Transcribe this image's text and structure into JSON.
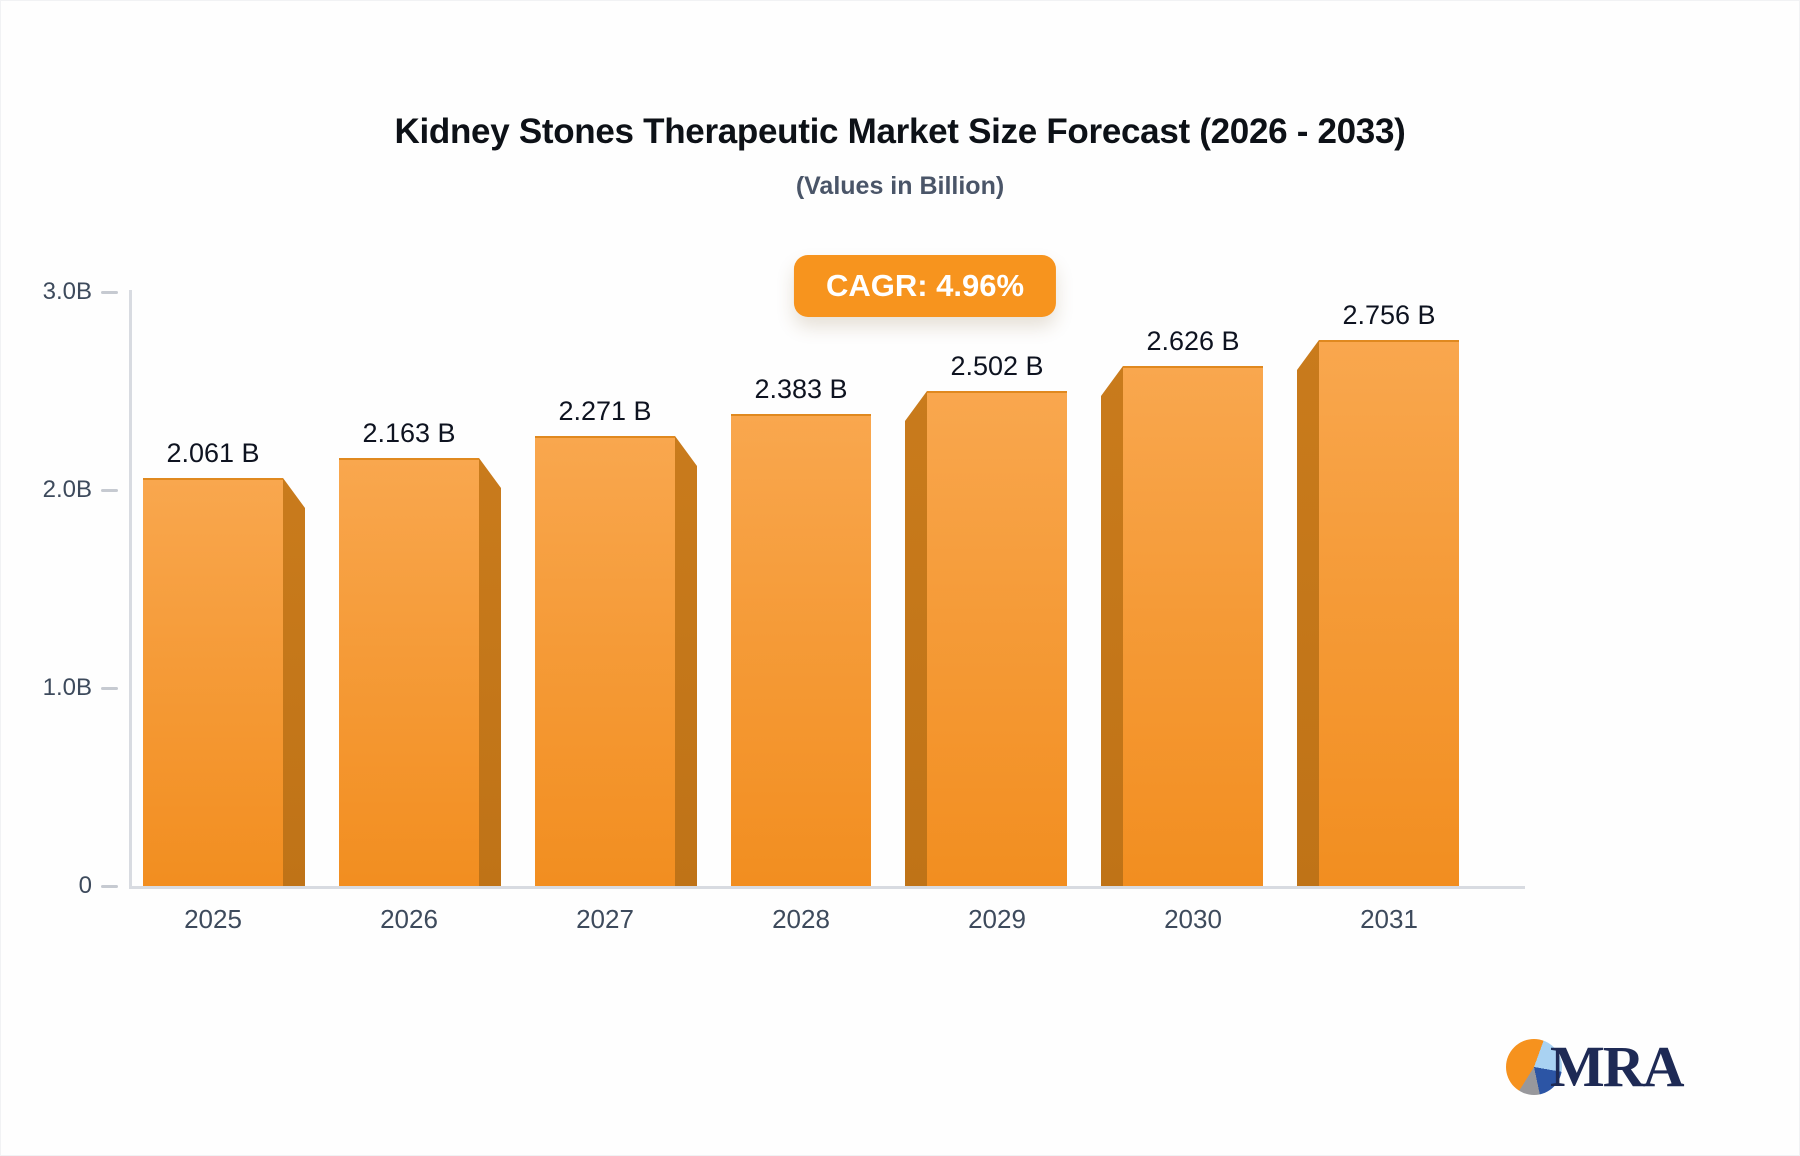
{
  "title": "Kidney Stones Therapeutic Market Size Forecast (2026 - 2033)",
  "subtitle": "(Values in Billion)",
  "badge": {
    "label": "CAGR: 4.96%",
    "color": "#f7941e",
    "text_color": "#ffffff"
  },
  "chart_data": {
    "type": "bar",
    "categories": [
      "2025",
      "2026",
      "2027",
      "2028",
      "2029",
      "2030",
      "2031"
    ],
    "values": [
      2.061,
      2.163,
      2.271,
      2.383,
      2.502,
      2.626,
      2.756
    ],
    "value_labels": [
      "2.061 B",
      "2.163 B",
      "2.271 B",
      "2.383 B",
      "2.502 B",
      "2.626 B",
      "2.756 B"
    ],
    "title": "Kidney Stones Therapeutic Market Size Forecast (2026 - 2033)",
    "subtitle": "(Values in Billion)",
    "xlabel": "",
    "ylabel": "",
    "ylim": [
      0,
      3.0
    ],
    "yticks": [
      "3.0B",
      "2.0B",
      "1.0B",
      "0"
    ],
    "ytick_values": [
      3.0,
      2.0,
      1.0,
      0
    ],
    "grid": false,
    "legend": false,
    "annotation": "CAGR: 4.96%",
    "style": "3d-perspective-columns",
    "bar_color_top": "#f9a74e",
    "bar_color_bottom": "#f28e20",
    "bar_side_color": "#c1761c",
    "axis_color": "#d8dbe1",
    "tick_label_color": "#3d4a5c",
    "value_label_color": "#0e1320"
  },
  "logo": {
    "text": "MRA",
    "icon": "pie-chart-icon",
    "text_color": "#1e2a55",
    "pie_colors": [
      "#f6921e",
      "#a9d2f2",
      "#2c55a5",
      "#98989c"
    ]
  }
}
